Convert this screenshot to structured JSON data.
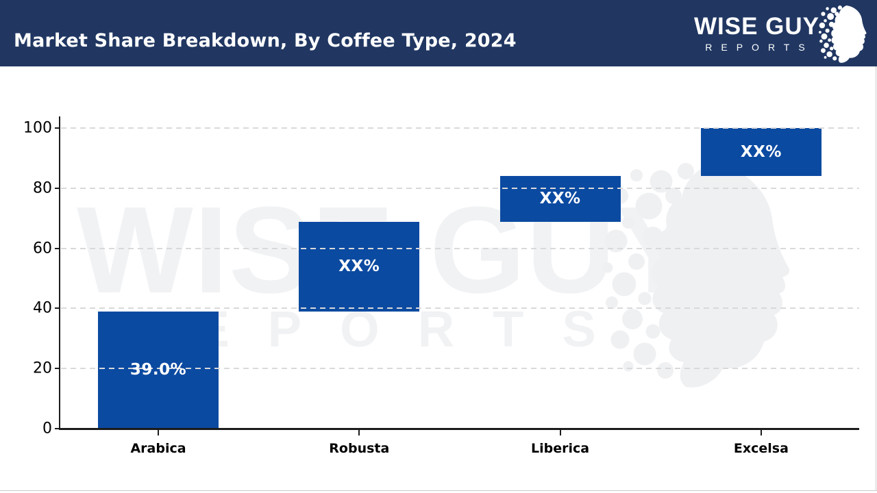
{
  "header": {
    "title": "Market Share Breakdown, By Coffee Type, 2024",
    "background_color": "#213762",
    "logo": {
      "wordmark": "WISE GUY",
      "subtitle": "REPORTS"
    }
  },
  "watermark": {
    "wordmark": "WISE GUY",
    "subtitle": "REPORTS"
  },
  "chart_data": {
    "type": "bar",
    "variant": "floating-segment-breakdown",
    "title": "Market Share Breakdown, By Coffee Type, 2024",
    "categories": [
      "Arabica",
      "Robusta",
      "Liberica",
      "Excelsa"
    ],
    "segments": [
      {
        "category": "Arabica",
        "start": 0,
        "end": 39,
        "label": "39.0%"
      },
      {
        "category": "Robusta",
        "start": 39,
        "end": 68.8,
        "label": "XX%"
      },
      {
        "category": "Liberica",
        "start": 68.8,
        "end": 84.1,
        "label": "XX%"
      },
      {
        "category": "Excelsa",
        "start": 84.1,
        "end": 100,
        "label": "XX%"
      }
    ],
    "xlabel": "",
    "ylabel": "",
    "ylim": [
      0,
      100
    ],
    "yticks": [
      0,
      20,
      40,
      60,
      80,
      100
    ],
    "grid": "horizontal-dashed",
    "legend": "none",
    "bar_color": "#0b4aa1",
    "bar_label_color": "#ffffff",
    "axis_color": "#1c1c1c",
    "grid_color": "#d9d9d9"
  }
}
